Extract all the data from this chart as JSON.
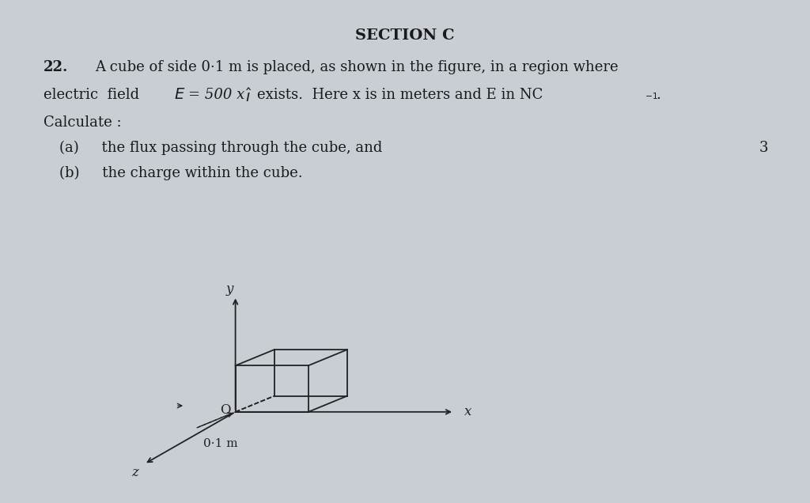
{
  "bg_color": "#b8bec4",
  "page_color": "#c8ced4",
  "title": "SECTION C",
  "q_number": "22.",
  "line1": "A cube of side 0·1 m is placed, as shown in the figure, in a region where",
  "line2a": "electric  field",
  "line2b": "= 500 x",
  "line2c": "exists.  Here x is in meters and E in NC",
  "line3": "Calculate :",
  "a_text": "(a)     the flux passing through the cube, and",
  "b_text": "(b)     the charge within the cube.",
  "mark": "3",
  "label_x": "x",
  "label_y": "y",
  "label_z": "z",
  "label_O": "O",
  "label_dim": "0·1 m",
  "text_color": "#1a1a1a",
  "title_fontsize": 14,
  "body_fontsize": 13,
  "fig_width": 10.24,
  "fig_height": 6.36
}
